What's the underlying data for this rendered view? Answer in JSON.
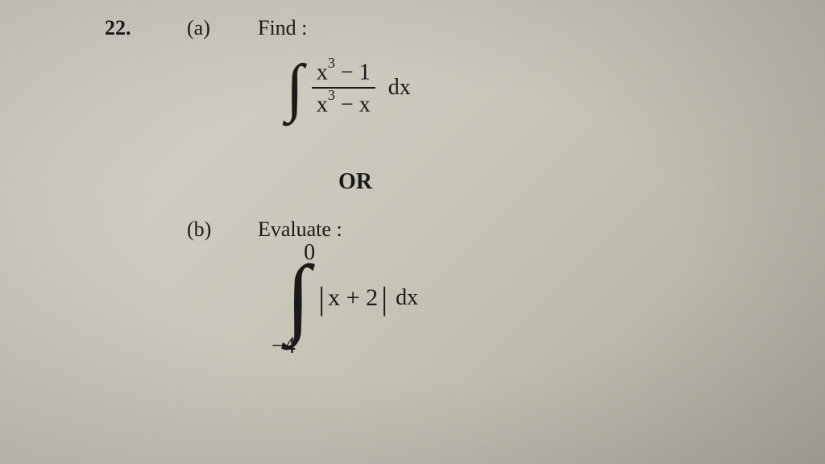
{
  "question": {
    "number": "22.",
    "partA": {
      "label": "(a)",
      "prompt": "Find :",
      "integral": {
        "numerator_base1": "x",
        "numerator_exp1": "3",
        "numerator_op": " − 1",
        "denominator_base1": "x",
        "denominator_exp1": "3",
        "denominator_op": " − x",
        "dx": "dx"
      }
    },
    "or_label": "OR",
    "partB": {
      "label": "(b)",
      "prompt": "Evaluate :",
      "integral": {
        "upper_limit": "0",
        "lower_limit": "−4",
        "inner": "x + 2",
        "dx": "dx"
      }
    }
  },
  "style": {
    "text_color": "#1a1a1a",
    "background_gradient_start": "#d8d4cc",
    "background_gradient_mid": "#c8c4b8",
    "background_gradient_end": "#b0aca0",
    "body_fontsize": 26,
    "math_fontsize": 28,
    "or_fontsize": 28,
    "font_family": "Times New Roman"
  }
}
